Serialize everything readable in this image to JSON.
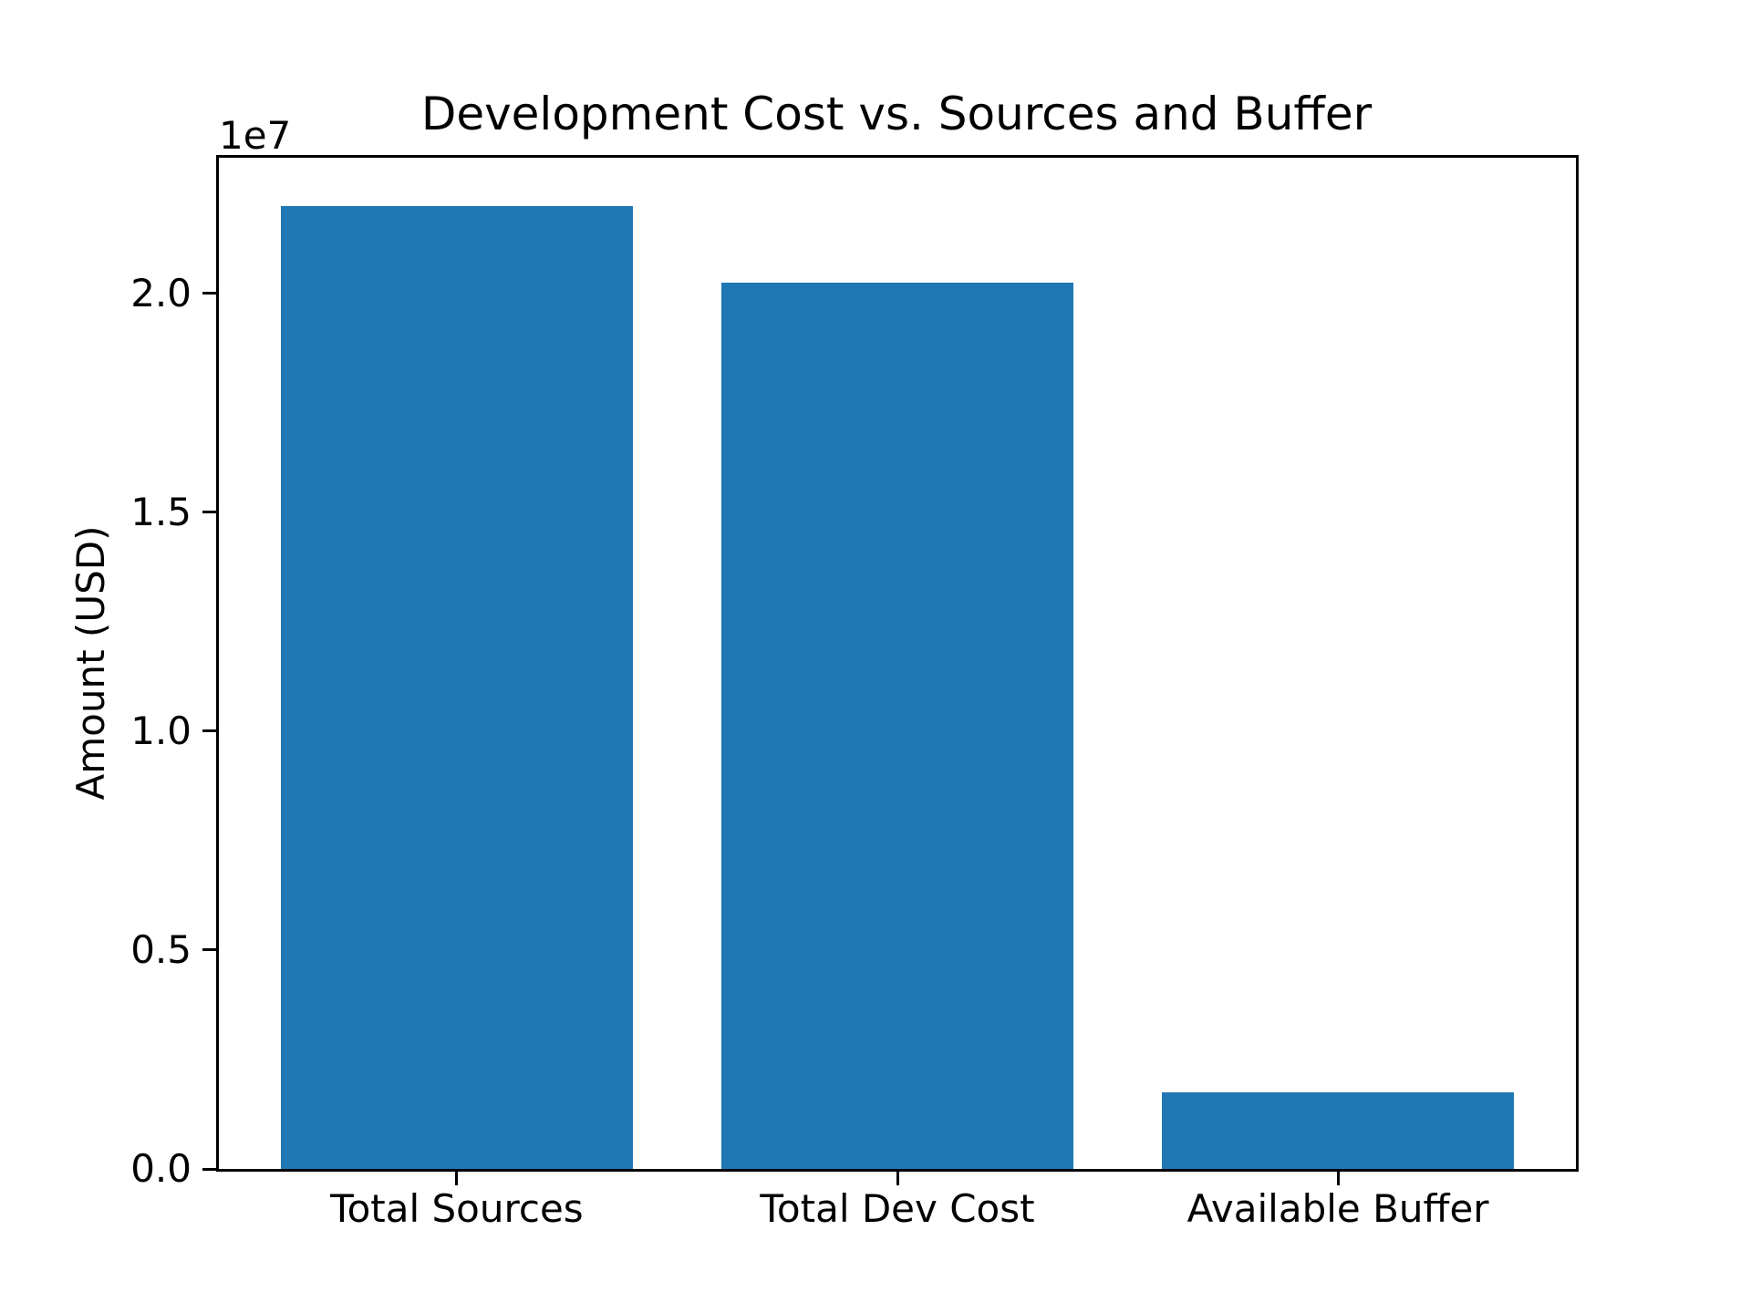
{
  "chart_data": {
    "type": "bar",
    "title": "Development Cost vs. Sources and Buffer",
    "xlabel": "",
    "ylabel": "Amount (USD)",
    "offset_text": "1e7",
    "categories": [
      "Total Sources",
      "Total Dev Cost",
      "Available Buffer"
    ],
    "values": [
      22000000,
      20250000,
      1750000
    ],
    "yticks": [
      {
        "value": 0,
        "label": "0.0"
      },
      {
        "value": 5000000,
        "label": "0.5"
      },
      {
        "value": 10000000,
        "label": "1.0"
      },
      {
        "value": 15000000,
        "label": "1.5"
      },
      {
        "value": 20000000,
        "label": "2.0"
      }
    ],
    "ylim": [
      0,
      23100000
    ],
    "grid": false,
    "legend_position": "none",
    "bar_color": "#1f77b4",
    "axis_color": "#000000",
    "background_color": "#ffffff"
  }
}
